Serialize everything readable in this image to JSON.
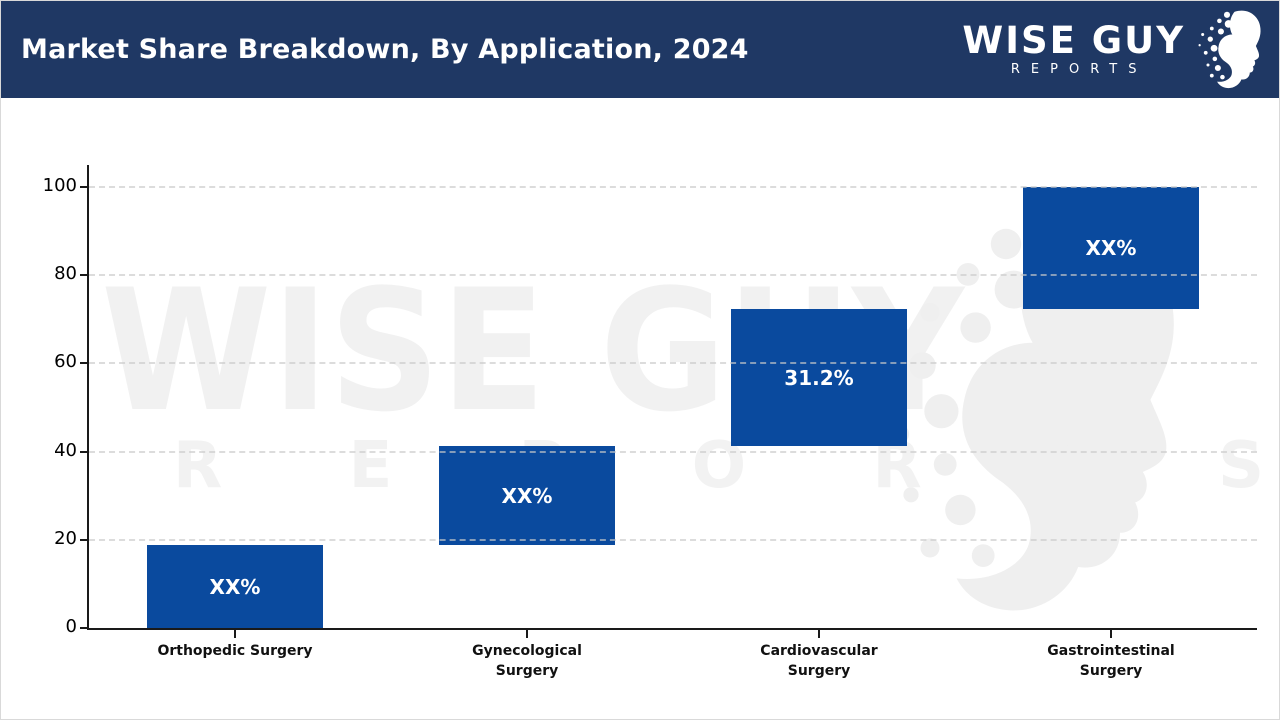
{
  "header": {
    "title": "Market Share Breakdown, By Application, 2024",
    "bg_color": "#1f3864",
    "logo": {
      "line1": "WISE GUY",
      "line2": "REPORTS"
    }
  },
  "watermark": {
    "line1": "WISE GUY",
    "line2": "R E P O R T S"
  },
  "chart_data": {
    "type": "bar",
    "subtype": "waterfall",
    "title": "Market Share Breakdown, By Application, 2024",
    "categories": [
      "Orthopedic Surgery",
      "Gynecological Surgery",
      "Cardiovascular Surgery",
      "Gastrointestinal Surgery"
    ],
    "category_label_lines": [
      [
        "Orthopedic Surgery"
      ],
      [
        "Gynecological",
        "Surgery"
      ],
      [
        "Cardiovascular",
        "Surgery"
      ],
      [
        "Gastrointestinal",
        "Surgery"
      ]
    ],
    "segments": [
      {
        "category": "Orthopedic Surgery",
        "start": 0,
        "end": 18.8,
        "value": 18.8,
        "label": "XX%"
      },
      {
        "category": "Gynecological Surgery",
        "start": 18.8,
        "end": 41.2,
        "value": 22.4,
        "label": "XX%"
      },
      {
        "category": "Cardiovascular Surgery",
        "start": 41.2,
        "end": 72.4,
        "value": 31.2,
        "label": "31.2%"
      },
      {
        "category": "Gastrointestinal Surgery",
        "start": 72.4,
        "end": 100,
        "value": 27.6,
        "label": "XX%"
      }
    ],
    "bar_color": "#0a4a9e",
    "bar_label_color": "#ffffff",
    "yticks": [
      0,
      20,
      40,
      60,
      80,
      100
    ],
    "ylim": [
      0,
      100
    ],
    "xlabel": "",
    "ylabel": "",
    "grid": "horizontal-dashed",
    "legend": "none"
  }
}
